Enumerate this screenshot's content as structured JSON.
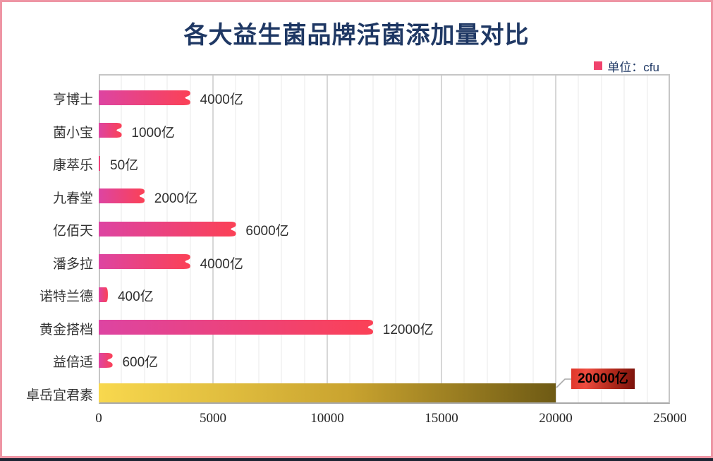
{
  "page": {
    "background": "#ffffff",
    "border_color": "#ee95a4",
    "footer_bar_color": "#1d2433"
  },
  "title": {
    "text": "各大益生菌品牌活菌添加量对比",
    "color": "#1f3864"
  },
  "legend": {
    "swatch_color": "#f0436d",
    "label": "单位：cfu"
  },
  "chart_data": {
    "type": "bar",
    "orientation": "horizontal",
    "title": "各大益生菌品牌活菌添加量对比",
    "unit": "cfu",
    "categories": [
      "亨博士",
      "菌小宝",
      "康萃乐",
      "九春堂",
      "亿佰天",
      "潘多拉",
      "诺特兰德",
      "黄金搭档",
      "益倍适",
      "卓岳宜君素"
    ],
    "values": [
      4000,
      1000,
      50,
      2000,
      6000,
      4000,
      400,
      12000,
      600,
      20000
    ],
    "data_labels": [
      "4000亿",
      "1000亿",
      "50亿",
      "2000亿",
      "6000亿",
      "4000亿",
      "400亿",
      "12000亿",
      "600亿",
      "20000亿"
    ],
    "xlabel": "",
    "ylabel": "",
    "x_ticks": [
      0,
      5000,
      10000,
      15000,
      20000,
      25000
    ],
    "xlim": [
      0,
      25000
    ],
    "grid": {
      "on": true,
      "minor_interval": 1000,
      "major_interval": 5000
    },
    "legend_position": "top-right",
    "bar_colors": {
      "default_gradient": [
        "#dd44a2",
        "#fb4156"
      ],
      "highlight_gradient": [
        "#f8d84e",
        "#c9a32f",
        "#6e5a14"
      ]
    },
    "highlight": {
      "category": "卓岳宜君素",
      "label": "20000亿",
      "label_bg_gradient": [
        "#ef4c40",
        "#7a120b"
      ],
      "label_text_color": "#000000",
      "callout_color": "#a9a9a9"
    }
  }
}
